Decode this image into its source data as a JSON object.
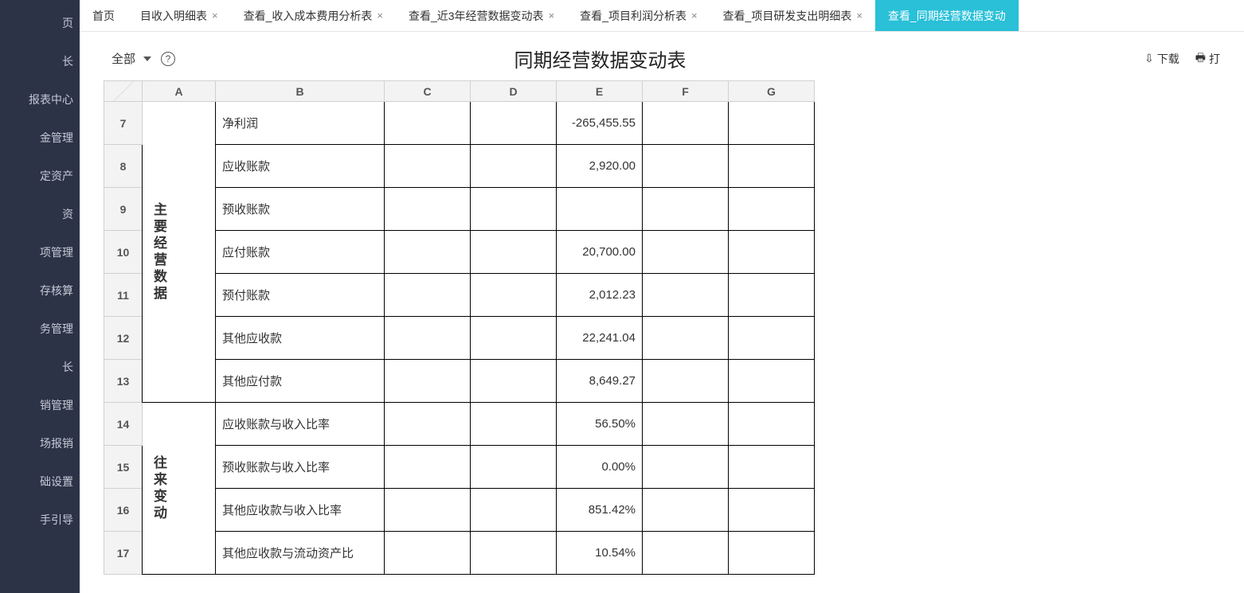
{
  "sidebar": {
    "items": [
      {
        "label": "页"
      },
      {
        "label": "长"
      },
      {
        "label": "报表中心"
      },
      {
        "label": "金管理"
      },
      {
        "label": "定资产"
      },
      {
        "label": "资"
      },
      {
        "label": "项管理"
      },
      {
        "label": "存核算"
      },
      {
        "label": "务管理"
      },
      {
        "label": "长"
      },
      {
        "label": "销管理"
      },
      {
        "label": "场报销"
      },
      {
        "label": "础设置"
      },
      {
        "label": "手引导"
      }
    ]
  },
  "tabs": [
    {
      "label": "首页",
      "closable": false
    },
    {
      "label": "目收入明细表",
      "closable": true
    },
    {
      "label": "查看_收入成本费用分析表",
      "closable": true
    },
    {
      "label": "查看_近3年经营数据变动表",
      "closable": true
    },
    {
      "label": "查看_项目利润分析表",
      "closable": true
    },
    {
      "label": "查看_项目研发支出明细表",
      "closable": true
    },
    {
      "label": "查看_同期经营数据变动",
      "closable": false,
      "active": true
    }
  ],
  "toolbar": {
    "filter_label": "全部",
    "title": "同期经营数据变动表",
    "download_label": "下载",
    "print_label": "打"
  },
  "sheet": {
    "columns": [
      "A",
      "B",
      "C",
      "D",
      "E",
      "F",
      "G"
    ],
    "col_widths": {
      "A": 52,
      "B": 212,
      "C": 108,
      "D": 108,
      "E": 108,
      "F": 108,
      "G": 108
    },
    "row_header_width": 48,
    "merged_col_A": [
      {
        "start": 7,
        "span": 7,
        "label": "主要经营数据"
      },
      {
        "start": 14,
        "span": 5,
        "label": "往来变动"
      }
    ],
    "rows": [
      {
        "num": 7,
        "B": "净利润",
        "E": "-265,455.55"
      },
      {
        "num": 8,
        "B": "应收账款",
        "E": "2,920.00"
      },
      {
        "num": 9,
        "B": "预收账款",
        "E": ""
      },
      {
        "num": 10,
        "B": "应付账款",
        "E": "20,700.00"
      },
      {
        "num": 11,
        "B": "预付账款",
        "E": "2,012.23"
      },
      {
        "num": 12,
        "B": "其他应收款",
        "E": "22,241.04"
      },
      {
        "num": 13,
        "B": "其他应付款",
        "E": "8,649.27"
      },
      {
        "num": 14,
        "B": "应收账款与收入比率",
        "E": "56.50%"
      },
      {
        "num": 15,
        "B": "预收账款与收入比率",
        "E": "0.00%"
      },
      {
        "num": 16,
        "B": "其他应收款与收入比率",
        "E": "851.42%"
      },
      {
        "num": 17,
        "B": "其他应收款与流动资产比",
        "E": "10.54%"
      }
    ]
  },
  "colors": {
    "sidebar_bg": "#2d3347",
    "sidebar_text": "#c5c9d6",
    "tab_active_bg": "#29c0d8",
    "header_bg": "#f3f3f3",
    "grid_border": "#d0d0d0",
    "data_border": "#000000"
  }
}
